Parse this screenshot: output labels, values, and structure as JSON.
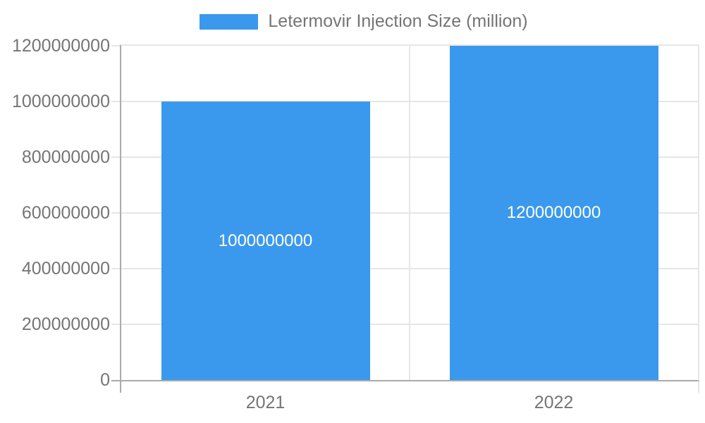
{
  "legend": {
    "label": "Letermovir Injection Size (million)"
  },
  "chart_data": {
    "type": "bar",
    "title": "Letermovir Injection Size (million)",
    "categories": [
      "2021",
      "2022"
    ],
    "series": [
      {
        "name": "Letermovir Injection Size (million)",
        "values": [
          1000000000,
          1200000000
        ]
      }
    ],
    "data_labels": [
      "1000000000",
      "1200000000"
    ],
    "xlabel": "",
    "ylabel": "",
    "ylim": [
      0,
      1200000000
    ],
    "y_ticks": [
      0,
      200000000,
      400000000,
      600000000,
      800000000,
      1000000000,
      1200000000
    ],
    "y_tick_labels": [
      "0",
      "200000000",
      "400000000",
      "600000000",
      "800000000",
      "1000000000",
      "1200000000"
    ],
    "grid": true,
    "legend_position": "top",
    "colors": {
      "bar": "#3a99ec",
      "data_label": "#ffffff",
      "axis_text": "#757575",
      "gridline": "#e6e6e6",
      "axis_line": "#aaaaaa",
      "background": "#ffffff"
    }
  }
}
